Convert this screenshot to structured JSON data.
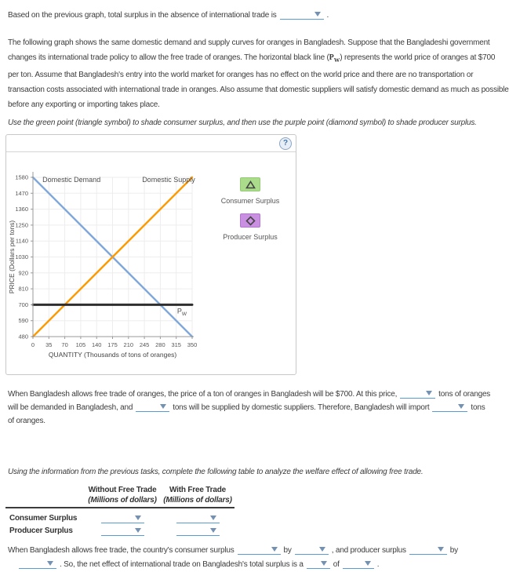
{
  "colors": {
    "dropdown_underline": "#5b9bd5",
    "dropdown_arrow": "#7291b3",
    "panel_border": "#c8c8c8"
  },
  "q1": {
    "before": "Based on the previous graph, total surplus in the absence of international trade is",
    "after": "."
  },
  "intro": {
    "line1": "The following graph shows the same domestic demand and supply curves for oranges in Bangladesh. Suppose that the Bangladeshi government",
    "line2_pre": "changes its international trade policy to allow the free trade of oranges. The horizontal black line (",
    "pw_main": "P",
    "pw_sub": "W",
    "line2_post": ") represents the world price of oranges at $700",
    "line3": "per ton. Assume that Bangladesh's entry into the world market for oranges has no effect on the world price and there are no transportation or",
    "line4": "transaction costs associated with international trade in oranges. Also assume that domestic suppliers will satisfy domestic demand as much as possible",
    "line5": "before any exporting or importing takes place."
  },
  "instruction": "Use the green point (triangle symbol) to shade consumer surplus, and then use the purple point (diamond symbol) to shade producer surplus.",
  "panel": {
    "help": "?",
    "legend": [
      {
        "label": "Consumer Surplus",
        "fill": "#abdc8c",
        "border": "#94ca74",
        "symbol": "triangle"
      },
      {
        "label": "Producer Surplus",
        "fill": "#c98fe0",
        "border": "#b077cb",
        "symbol": "diamond"
      }
    ]
  },
  "chart_data": {
    "type": "line",
    "title": "",
    "xlabel": "QUANTITY (Thousands of tons of oranges)",
    "ylabel": "PRICE (Dollars per tons)",
    "xlim": [
      0,
      350
    ],
    "ylim": [
      480,
      1580
    ],
    "x_ticks": [
      0,
      35,
      70,
      105,
      140,
      175,
      210,
      245,
      280,
      315,
      350
    ],
    "y_ticks": [
      480,
      590,
      700,
      810,
      920,
      1030,
      1140,
      1250,
      1360,
      1470,
      1580
    ],
    "grid": true,
    "legend_position": "right",
    "series": [
      {
        "name": "Domestic Demand",
        "color": "#7fa8d9",
        "width": 2.4,
        "points": [
          [
            0,
            1580
          ],
          [
            350,
            480
          ]
        ]
      },
      {
        "name": "Domestic Supply",
        "color": "#ff9900",
        "width": 2.4,
        "points": [
          [
            0,
            480
          ],
          [
            350,
            1580
          ]
        ]
      },
      {
        "name": "World Price (Pw)",
        "color": "#2e2e2e",
        "width": 3,
        "points": [
          [
            0,
            700
          ],
          [
            350,
            700
          ]
        ]
      }
    ],
    "annotations": [
      {
        "text": "Domestic Demand",
        "x": 21,
        "y": 1548
      },
      {
        "text": "Domestic Supply",
        "x": 240,
        "y": 1548
      },
      {
        "text": "P",
        "sub": "W",
        "x": 317,
        "y": 640
      }
    ],
    "world_price": 700,
    "equilibrium": {
      "quantity": 175,
      "price": 1030
    },
    "quantity_supplied_at_world_price": 70,
    "quantity_demanded_at_world_price": 280
  },
  "q2": {
    "line1_a": "When Bangladesh allows free trade of oranges, the price of a ton of oranges in Bangladesh will be $700. At this price,",
    "line1_b": "tons of oranges",
    "line2_a": "will be demanded in Bangladesh, and",
    "line2_b": "tons will be supplied by domestic suppliers. Therefore, Bangladesh will import",
    "line2_c": "tons",
    "line3": "of oranges."
  },
  "table": {
    "caption": "Using the information from the previous tasks, complete the following table to analyze the welfare effect of allowing free trade.",
    "col1_title": "Without Free Trade",
    "col1_sub": "(Millions of dollars)",
    "col2_title": "With Free Trade",
    "col2_sub": "(Millions of dollars)",
    "rows": [
      {
        "label": "Consumer Surplus"
      },
      {
        "label": "Producer Surplus"
      }
    ]
  },
  "q3": {
    "line1_a": "When Bangladesh allows free trade, the country's consumer surplus",
    "line1_b": "by",
    "line1_c": ", and producer surplus",
    "line1_d": "by",
    "line2_a": ". So, the net effect of international trade on Bangladesh's total surplus is a",
    "line2_b": "of",
    "line2_c": "."
  }
}
